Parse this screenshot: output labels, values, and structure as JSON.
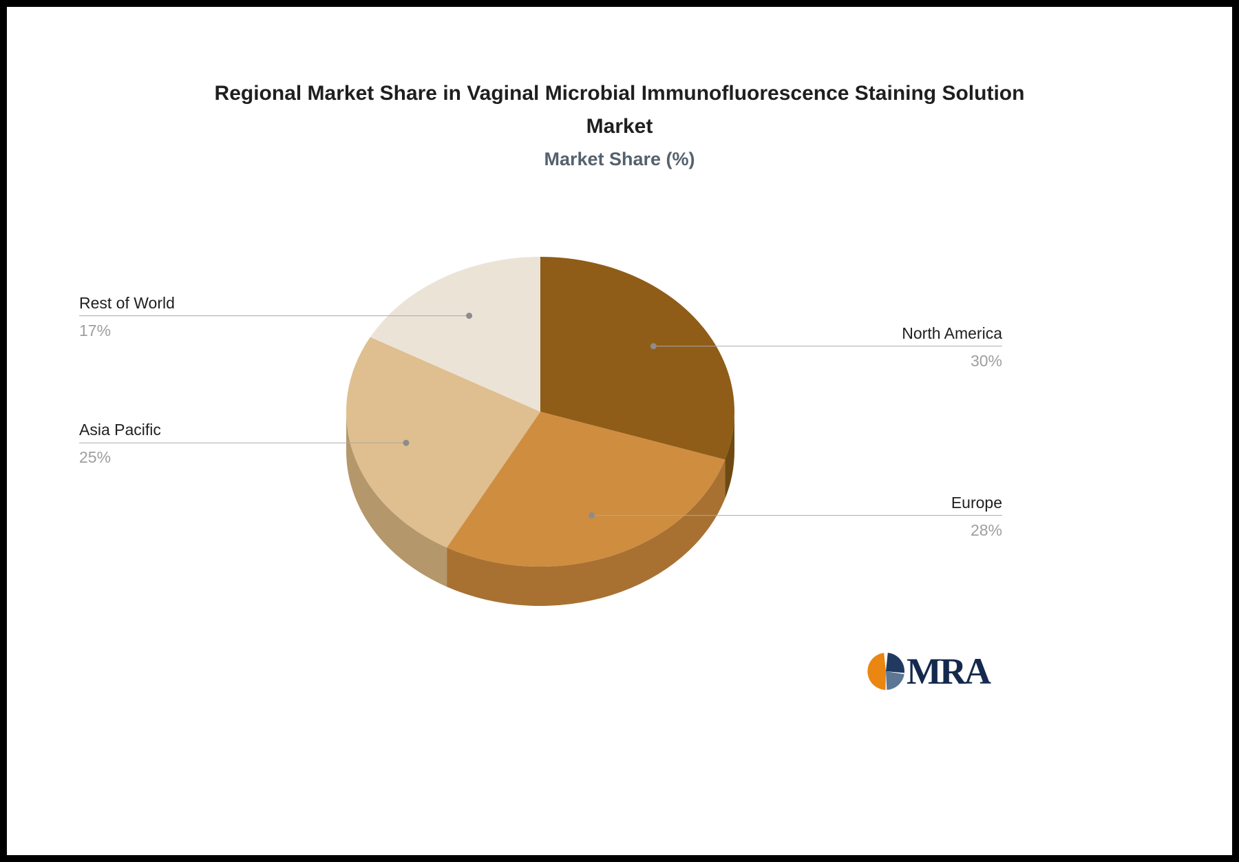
{
  "frame": {
    "border_color": "#000000",
    "background": "#ffffff"
  },
  "header": {
    "title": "Regional Market Share in Vaginal Microbial Immunofluorescence Staining Solution Market",
    "title_line1": "Regional Market Share in Vaginal Microbial Immunofluorescence Staining Solution",
    "title_line2": "Market",
    "subtitle": "Market Share (%)"
  },
  "chart_data": {
    "type": "pie",
    "style": "3d",
    "title": "Regional Market Share in Vaginal Microbial Immunofluorescence Staining Solution Market",
    "subtitle": "Market Share (%)",
    "unit": "%",
    "total": 100,
    "start_angle_deg": 0,
    "direction": "clockwise",
    "legend_position": "none",
    "slices": [
      {
        "label": "North America",
        "value": 30,
        "display": "30%",
        "color": "#8f5d18",
        "rim_color": "#6e4a12",
        "label_side": "right"
      },
      {
        "label": "Europe",
        "value": 28,
        "display": "28%",
        "color": "#cf8d40",
        "rim_color": "#a87132",
        "label_side": "right"
      },
      {
        "label": "Asia Pacific",
        "value": 25,
        "display": "25%",
        "color": "#dfbe90",
        "rim_color": "#b4976b",
        "label_side": "left"
      },
      {
        "label": "Rest of World",
        "value": 17,
        "display": "17%",
        "color": "#ece3d7",
        "rim_color": "#c8bba8",
        "label_side": "left"
      }
    ],
    "label_name_color": "#1f1f1f",
    "label_pct_color": "#9e9e9e",
    "leader_line_color": "#a9a9a9",
    "dot_color": "#8c8c8c"
  },
  "logo": {
    "text": "MRA",
    "text_color": "#15294e",
    "icon_colors": {
      "orange": "#ea8611",
      "navy": "#203a5f",
      "blue": "#5b7795"
    }
  }
}
